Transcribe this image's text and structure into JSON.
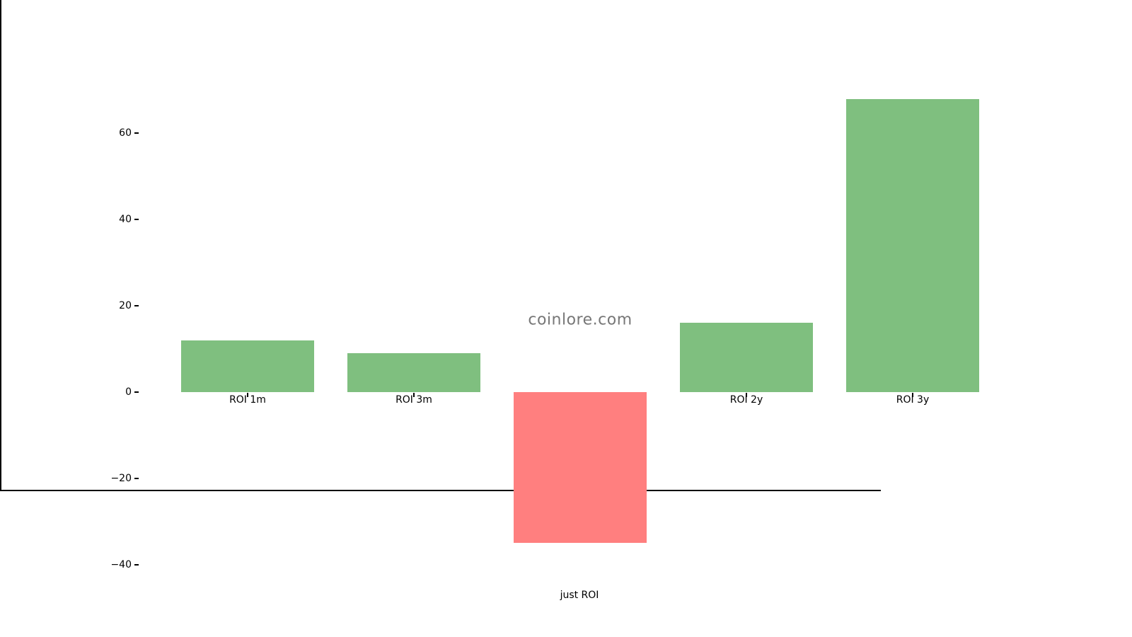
{
  "chart_data": {
    "type": "bar",
    "title": "",
    "xlabel": "just ROI",
    "ylabel": "",
    "categories": [
      "ROI 1m",
      "ROI 3m",
      "just ROI",
      "ROI 2y",
      "ROI 3y"
    ],
    "values": [
      12,
      9,
      -35,
      16,
      68
    ],
    "bar_colors": [
      "#7fbf7f",
      "#7fbf7f",
      "#ff7f7f",
      "#7fbf7f",
      "#7fbf7f"
    ],
    "tick_label_visible": [
      true,
      true,
      false,
      true,
      true
    ],
    "positive_color": "#7fbf7f",
    "negative_color": "#ff7f7f",
    "yticks": [
      -40,
      -20,
      0,
      20,
      40,
      60
    ],
    "ylim": [
      -40,
      73.3
    ],
    "grid": false,
    "legend": "none",
    "axis_color": "#000000",
    "watermark": "coinlore.com",
    "watermark_color": "#777777"
  }
}
